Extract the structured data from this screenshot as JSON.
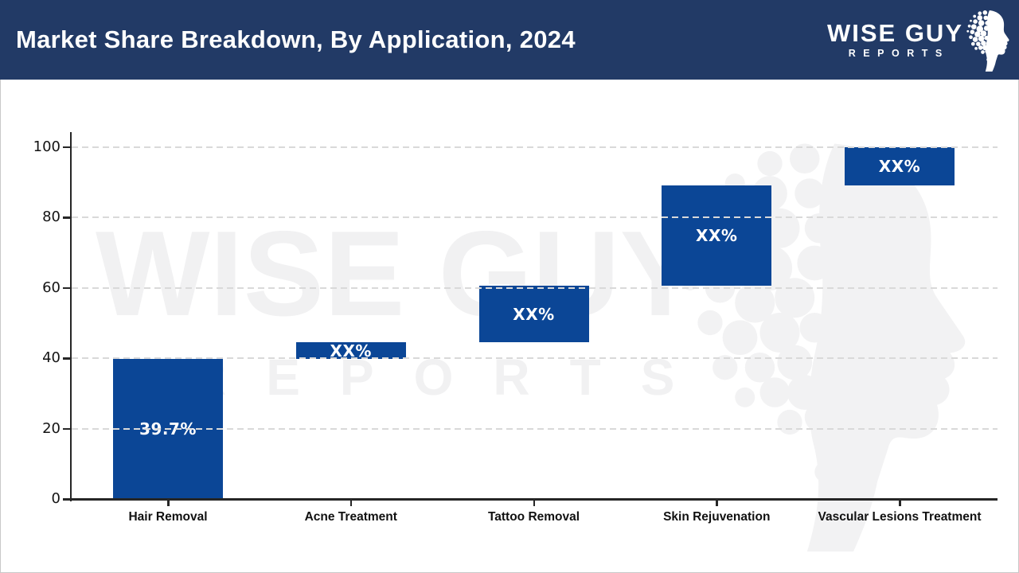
{
  "header": {
    "title": "Market Share Breakdown, By Application, 2024",
    "logo": {
      "line1": "WISE GUY",
      "line2": "REPORTS"
    }
  },
  "watermark": {
    "line1": "WISE GUY",
    "line2": "REPORTS"
  },
  "colors": {
    "header_bg": "#223A66",
    "bar": "#0B4696",
    "bar_label": "#FFFFFF",
    "watermark": "#F1F1F2",
    "gridline": "#D9D9D9",
    "axis": "#262626"
  },
  "chart_data": {
    "type": "bar",
    "subtype": "waterfall",
    "title": "Market Share Breakdown, By Application, 2024",
    "xlabel": "",
    "ylabel": "",
    "ylim": [
      0,
      100
    ],
    "yticks": [
      0,
      20,
      40,
      60,
      80,
      100
    ],
    "grid": "horizontal-dashed",
    "legend": "none",
    "categories": [
      "Hair Removal",
      "Acne Treatment",
      "Tattoo Removal",
      "Skin Rejuvenation",
      "Vascular Lesions Treatment"
    ],
    "bars": [
      {
        "category": "Hair Removal",
        "start": 0,
        "end": 39.7,
        "value": 39.7,
        "label": "39.7%"
      },
      {
        "category": "Acne Treatment",
        "start": 39.7,
        "end": 44.5,
        "value": 4.8,
        "label": "XX%"
      },
      {
        "category": "Tattoo Removal",
        "start": 44.5,
        "end": 60.5,
        "value": 16.0,
        "label": "XX%"
      },
      {
        "category": "Skin Rejuvenation",
        "start": 60.5,
        "end": 89.0,
        "value": 28.5,
        "label": "XX%"
      },
      {
        "category": "Vascular Lesions Treatment",
        "start": 89.0,
        "end": 100.0,
        "value": 11.0,
        "label": "XX%"
      }
    ]
  }
}
